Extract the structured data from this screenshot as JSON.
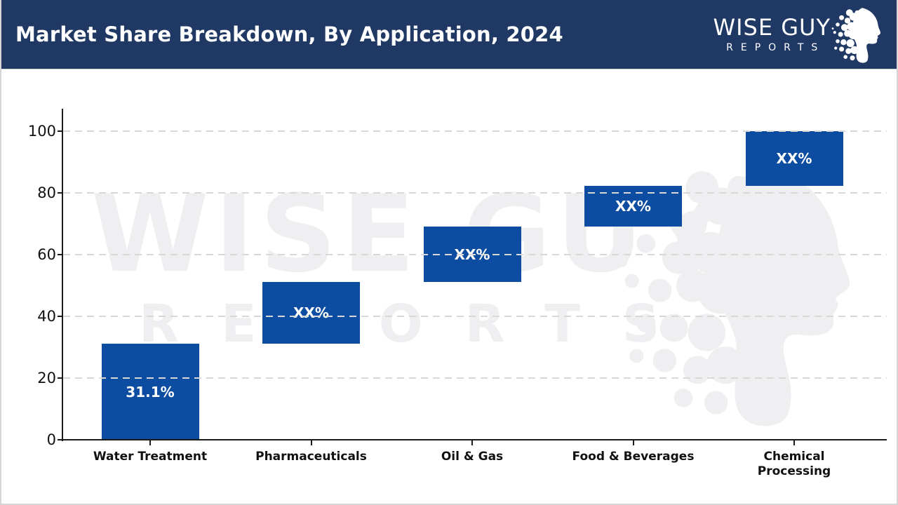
{
  "header": {
    "title": "Market Share Breakdown, By Application, 2024",
    "logo": {
      "name": "WISE GUY",
      "sub": "REPORTS"
    }
  },
  "watermark": {
    "name": "WISE GUY",
    "sub": "REPORTS"
  },
  "chart_data": {
    "type": "bar",
    "variant": "waterfall",
    "title": "Market Share Breakdown, By Application, 2024",
    "categories": [
      "Water Treatment",
      "Pharmaceuticals",
      "Oil & Gas",
      "Food & Beverages",
      "Chemical Processing"
    ],
    "tick_labels": [
      "Water Treatment",
      "Pharmaceuticals",
      "Oil & Gas",
      "Food & Beverages",
      "Chemical\nProcessing"
    ],
    "segments": [
      {
        "category": "Water Treatment",
        "start": 0,
        "end": 31.1,
        "label": "31.1%"
      },
      {
        "category": "Pharmaceuticals",
        "start": 31.1,
        "end": 51.1,
        "label": "XX%"
      },
      {
        "category": "Oil & Gas",
        "start": 51.1,
        "end": 69.1,
        "label": "XX%"
      },
      {
        "category": "Food & Beverages",
        "start": 69.1,
        "end": 82.3,
        "label": "XX%"
      },
      {
        "category": "Chemical Processing",
        "start": 82.3,
        "end": 100,
        "label": "XX%"
      }
    ],
    "xlabel": "",
    "ylabel": "",
    "ylim": [
      0,
      105
    ],
    "yticks": [
      0,
      20,
      40,
      60,
      80,
      100
    ],
    "grid": "horizontal dashed",
    "legend": "none",
    "bar_color": "#0d4da1",
    "bar_label_color": "#ffffff"
  },
  "colors": {
    "header_bg": "#203864",
    "bar": "#0d4da1",
    "grid": "#d8d8d8",
    "axis": "#1a1a1a",
    "watermark": "#efeff2",
    "page_bg": "#ffffff"
  }
}
